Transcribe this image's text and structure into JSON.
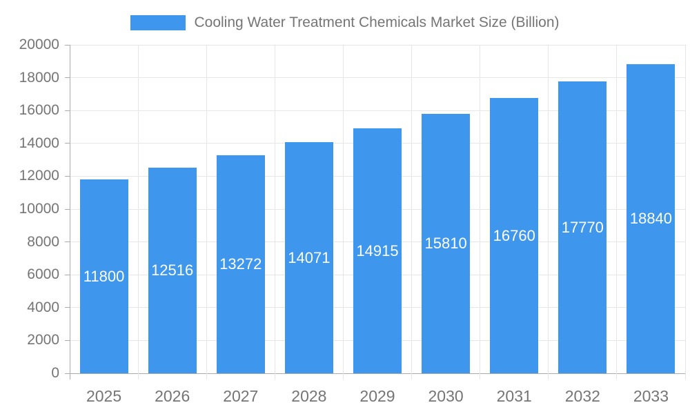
{
  "page": {
    "background_color": "#ffffff"
  },
  "legend": {
    "position": "top",
    "swatch_icon": "series-color-swatch"
  },
  "chart_data": {
    "type": "bar",
    "title": "Cooling Water Treatment Chemicals Market Size (Billion)",
    "categories": [
      "2025",
      "2026",
      "2027",
      "2028",
      "2029",
      "2030",
      "2031",
      "2032",
      "2033"
    ],
    "values": [
      11800,
      12516,
      13272,
      14071,
      14915,
      15810,
      16760,
      17770,
      18840
    ],
    "series": [
      {
        "name": "Cooling Water Treatment Chemicals Market Size (Billion)",
        "values": [
          11800,
          12516,
          13272,
          14071,
          14915,
          15810,
          16760,
          17770,
          18840
        ]
      }
    ],
    "xlabel": "",
    "ylabel": "",
    "ylim": [
      0,
      20000
    ],
    "yticks": [
      0,
      2000,
      4000,
      6000,
      8000,
      10000,
      12000,
      14000,
      16000,
      18000,
      20000
    ],
    "grid": true,
    "value_labels": "centered-inside-bars",
    "legend_position": "top-center",
    "colors": {
      "bar": "#3E97ED",
      "value_label": "#FFFFFF",
      "tick_text": "#757575",
      "legend_text": "#757575",
      "gridline": "#E6E6E6",
      "axis_line": "#ABABAB"
    }
  }
}
